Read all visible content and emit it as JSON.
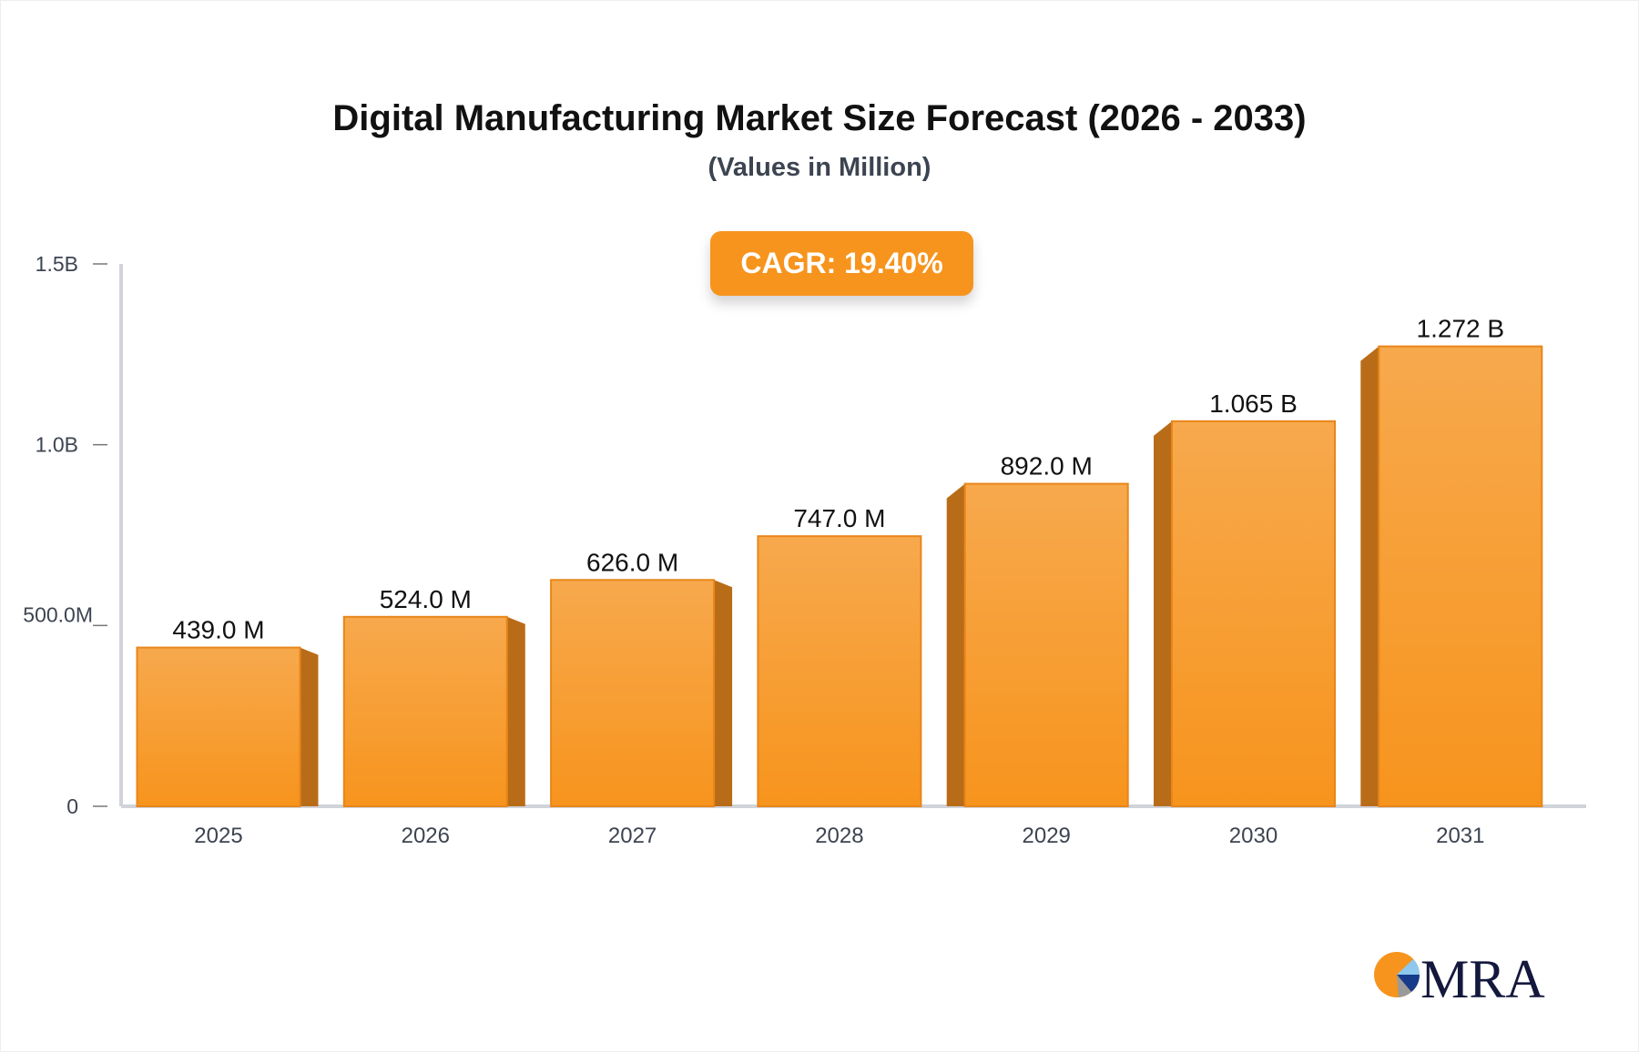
{
  "chart_data": {
    "type": "bar",
    "title": "Digital Manufacturing Market Size Forecast (2026 - 2033)",
    "subtitle": "(Values in Million)",
    "annotation": "CAGR: 19.40%",
    "categories": [
      "2025",
      "2026",
      "2027",
      "2028",
      "2029",
      "2030",
      "2031"
    ],
    "values": [
      439.0,
      524.0,
      626.0,
      747.0,
      892.0,
      1065.0,
      1272.0
    ],
    "data_labels": [
      "439.0 M",
      "524.0 M",
      "626.0 M",
      "747.0 M",
      "892.0 M",
      "1.065 B",
      "1.272 B"
    ],
    "y_ticks": [
      0,
      500,
      1000,
      1500
    ],
    "y_tick_labels": [
      "0",
      "500.0M",
      "1.0B",
      "1.5B"
    ],
    "ylim": [
      0,
      1500
    ],
    "xlabel": "",
    "ylabel": "",
    "grid": false,
    "colors": {
      "bar_top": "#f7a94d",
      "bar_bottom": "#f7941d",
      "bar_side": "#b96c18",
      "bar_edge": "#e8861a",
      "axis": "#d1d3da",
      "cagr_bg": "#f7941d"
    }
  },
  "logo": {
    "text": "MRA"
  }
}
